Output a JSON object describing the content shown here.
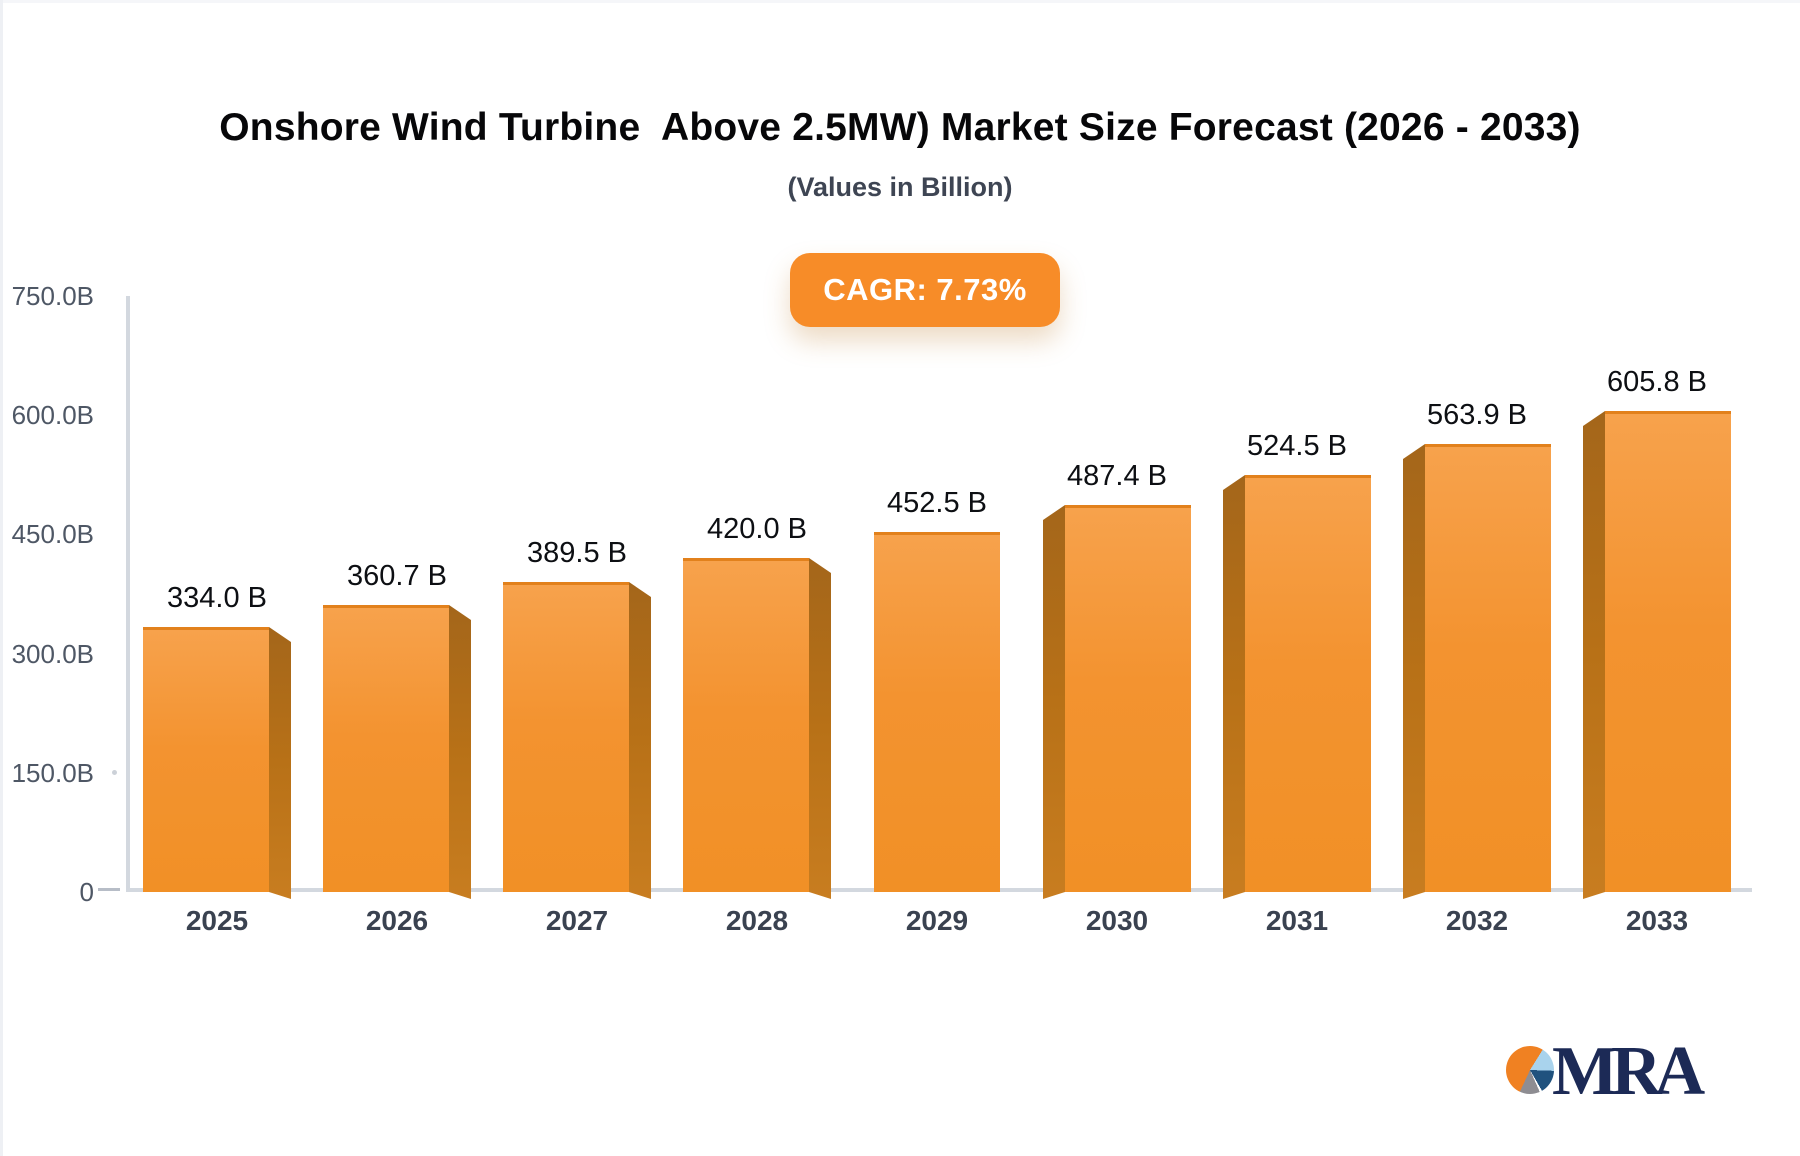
{
  "header": {
    "title": "Onshore Wind Turbine  Above 2.5MW) Market Size Forecast (2026 - 2033)",
    "subtitle": "(Values in Billion)"
  },
  "cagr_badge": {
    "label": "CAGR: 7.73%",
    "bg": "#f78c28"
  },
  "chart_data": {
    "type": "bar",
    "title": "Onshore Wind Turbine  Above 2.5MW) Market Size Forecast (2026 - 2033)",
    "subtitle": "(Values in Billion)",
    "categories": [
      "2025",
      "2026",
      "2027",
      "2028",
      "2029",
      "2030",
      "2031",
      "2032",
      "2033"
    ],
    "values": [
      334.0,
      360.7,
      389.5,
      420.0,
      452.5,
      487.4,
      524.5,
      563.9,
      605.8
    ],
    "value_labels": [
      "334.0 B",
      "360.7 B",
      "389.5 B",
      "420.0 B",
      "452.5 B",
      "487.4 B",
      "524.5 B",
      "563.9 B",
      "605.8 B"
    ],
    "ylim": [
      0,
      750
    ],
    "yticks": [
      {
        "label": "750.0B",
        "value": 750
      },
      {
        "label": "600.0B",
        "value": 600
      },
      {
        "label": "450.0B",
        "value": 450
      },
      {
        "label": "300.0B",
        "value": 300
      },
      {
        "label": "150.0B",
        "value": 150
      },
      {
        "label": "0",
        "value": 0
      }
    ],
    "grid": false,
    "legend": null,
    "style_3d": "extruded bars, side face toward outer edges, flat center bar",
    "colors": {
      "bar_face_top": "#f7a24c",
      "bar_face_bottom": "#f19026",
      "bar_side": "#b87117",
      "bar_top_edge": "#e2811c",
      "axis_line": "#d3d8df",
      "accent": "#f78c28"
    }
  },
  "logo": {
    "text": "MRA",
    "colors": {
      "navy": "#1c2a56",
      "orange": "#f08122",
      "light_blue": "#a9d3ed",
      "steel_blue": "#20527e",
      "gray": "#8e8d92"
    }
  }
}
